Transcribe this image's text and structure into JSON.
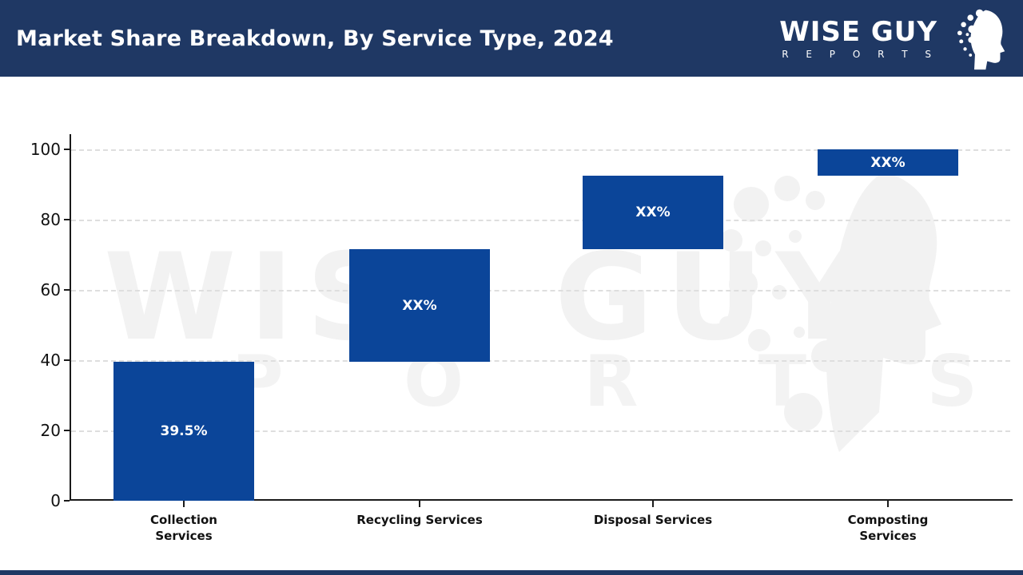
{
  "header": {
    "title": "Market Share Breakdown, By Service Type, 2024",
    "logo": {
      "line1": "WISE GUY",
      "line2": "R E P O R T S"
    }
  },
  "watermark": {
    "line1": "WISE GUY",
    "line2": "P O R T S"
  },
  "colors": {
    "header_bg": "#1f3864",
    "bar_fill": "#0b4599",
    "bar_label": "#ffffff",
    "grid": "#dedede",
    "axis": "#1a1a1a"
  },
  "chart_data": {
    "type": "bar",
    "subtype": "waterfall-stacked",
    "title": "Market Share Breakdown, By Service Type, 2024",
    "categories": [
      "Collection Services",
      "Recycling Services",
      "Disposal Services",
      "Composting Services"
    ],
    "category_label_lines": [
      [
        "Collection",
        "Services"
      ],
      [
        "Recycling Services"
      ],
      [
        "Disposal Services"
      ],
      [
        "Composting",
        "Services"
      ]
    ],
    "segments": [
      {
        "category": "Collection Services",
        "start": 0,
        "end": 39.5,
        "value": 39.5,
        "label": "39.5%"
      },
      {
        "category": "Recycling Services",
        "start": 39.5,
        "end": 71.5,
        "value": 32.0,
        "label": "XX%"
      },
      {
        "category": "Disposal Services",
        "start": 71.5,
        "end": 92.5,
        "value": 21.0,
        "label": "XX%"
      },
      {
        "category": "Composting Services",
        "start": 92.5,
        "end": 100,
        "value": 7.5,
        "label": "XX%"
      }
    ],
    "xlabel": "",
    "ylabel": "",
    "ylim": [
      0,
      100
    ],
    "yticks": [
      0,
      20,
      40,
      60,
      80,
      100
    ],
    "grid": "horizontal-dashed",
    "legend": "none"
  }
}
